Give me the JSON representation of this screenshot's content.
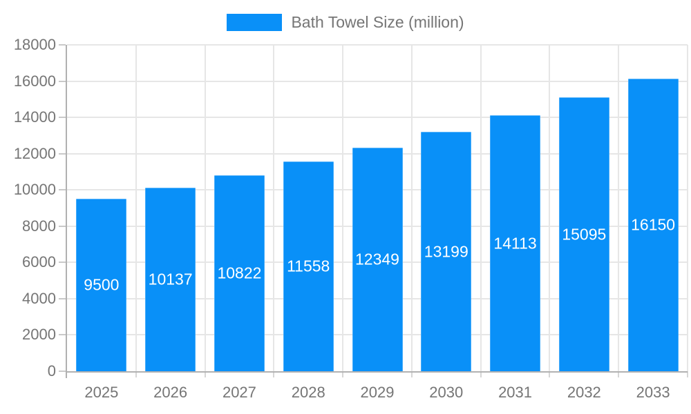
{
  "chart_data": {
    "type": "bar",
    "title": "",
    "legend_label": "Bath Towel Size (million)",
    "legend_position": "top",
    "categories": [
      "2025",
      "2026",
      "2027",
      "2028",
      "2029",
      "2030",
      "2031",
      "2032",
      "2033"
    ],
    "values": [
      9500,
      10137,
      10822,
      11558,
      12349,
      13199,
      14113,
      15095,
      16150
    ],
    "xlabel": "",
    "ylabel": "",
    "ylim": [
      0,
      18000
    ],
    "ytick_step": 2000,
    "grid": true,
    "bar_value_labels_visible": true,
    "colors": {
      "bar": "#0990f8",
      "bar_value_text": "#ffffff",
      "axis_text": "#757575",
      "legend_text": "#757575",
      "axis_line": "#b1b1b1",
      "gridline": "#e6e6e6"
    }
  }
}
